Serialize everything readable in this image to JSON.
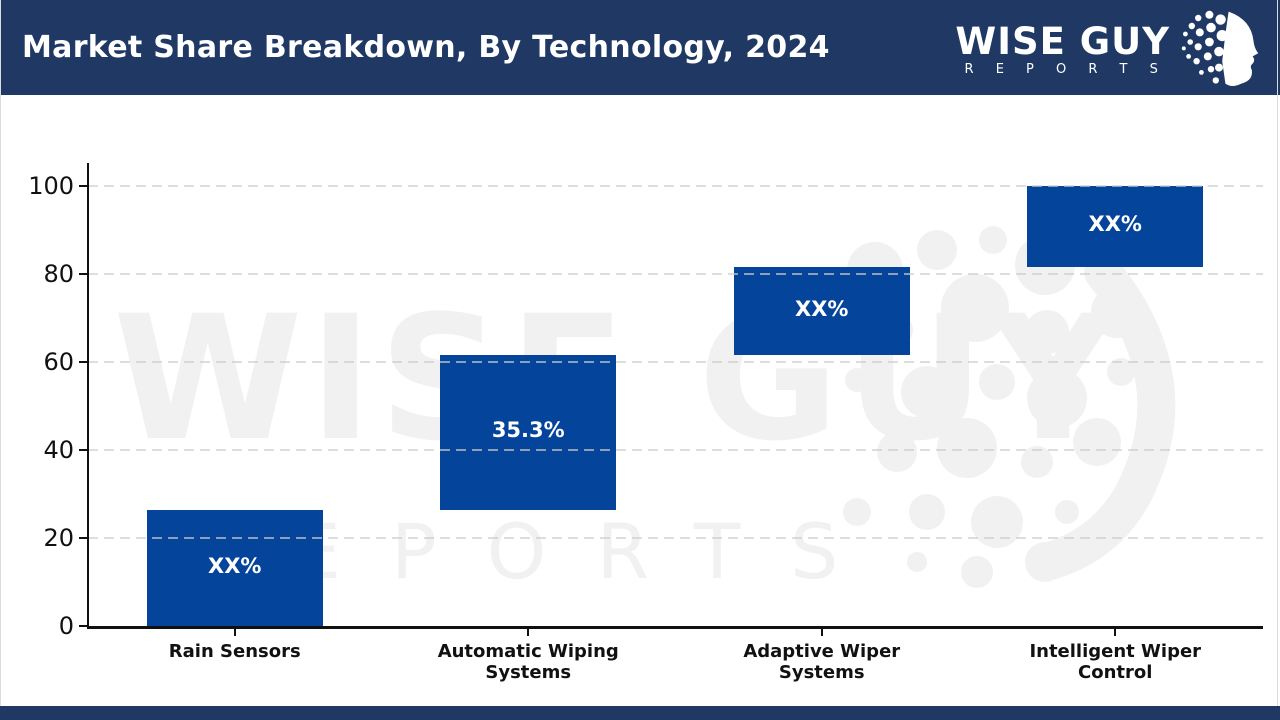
{
  "header": {
    "title": "Market Share Breakdown, By Technology, 2024",
    "logo": {
      "wordmark": "WISE GUY",
      "sub": "R E P O R T S"
    },
    "bg_color": "#1f3864"
  },
  "watermark": {
    "wordmark": "WISE GUY",
    "sub": "R E P O R T S"
  },
  "chart_data": {
    "type": "bar",
    "subtype": "waterfall",
    "title": "Market Share Breakdown, By Technology, 2024",
    "categories": [
      "Rain Sensors",
      "Automatic Wiping\nSystems",
      "Adaptive Wiper\nSystems",
      "Intelligent Wiper\nControl"
    ],
    "bars": [
      {
        "category": "Rain Sensors",
        "start": 0,
        "end": 26.4,
        "label": "XX%"
      },
      {
        "category": "Automatic Wiping Systems",
        "start": 26.4,
        "end": 61.7,
        "label": "35.3%"
      },
      {
        "category": "Adaptive Wiper Systems",
        "start": 61.7,
        "end": 81.6,
        "label": "XX%"
      },
      {
        "category": "Intelligent Wiper Control",
        "start": 81.6,
        "end": 100,
        "label": "XX%"
      }
    ],
    "yticks": [
      0,
      20,
      40,
      60,
      80,
      100
    ],
    "ylim": [
      0,
      105
    ],
    "xlabel": "",
    "ylabel": "",
    "legend": "none",
    "grid": true,
    "gridline_style": "dashed",
    "gridline_color": "#d3d3d3",
    "bar_color": "#05449b",
    "bar_label_color": "#ffffff",
    "axis_color": "#000000"
  }
}
